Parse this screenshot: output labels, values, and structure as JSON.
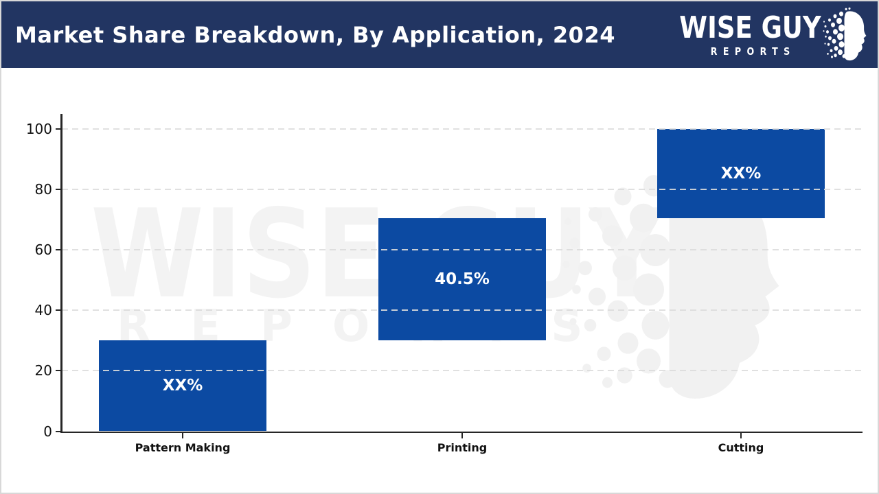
{
  "header": {
    "title": "Market Share Breakdown, By Application, 2024",
    "logo": {
      "line1": "WISE GUY",
      "line2": "REPORTS"
    }
  },
  "watermark": {
    "line1": "WISE GUY",
    "line2": "REPORTS"
  },
  "colors": {
    "header_navy": "#223562",
    "bar_blue": "#0c4aa2",
    "grid_gray": "#dcdcdc",
    "axis_dark": "#262626",
    "watermark_gray": "#f3f3f3"
  },
  "chart_data": {
    "type": "bar",
    "subtype": "floating-segment-breakdown",
    "title": "Market Share Breakdown, By Application, 2024",
    "categories": [
      "Pattern Making",
      "Printing",
      "Cutting"
    ],
    "bars": [
      {
        "category": "Pattern Making",
        "start": 0,
        "end": 30,
        "label": "XX%"
      },
      {
        "category": "Printing",
        "start": 30,
        "end": 70.5,
        "label": "40.5%"
      },
      {
        "category": "Cutting",
        "start": 70.5,
        "end": 100,
        "label": "XX%"
      }
    ],
    "segment_heights_pct": [
      30,
      40.5,
      29.5
    ],
    "yticks": [
      0,
      20,
      40,
      60,
      80,
      100
    ],
    "ylim": [
      0,
      105
    ],
    "xlabel": "",
    "ylabel": "",
    "grid": {
      "horizontal": true,
      "style": "dashed",
      "above_bars": true
    },
    "legend": null,
    "bar_color": "#0c4aa2",
    "bar_label_color": "#ffffff"
  }
}
